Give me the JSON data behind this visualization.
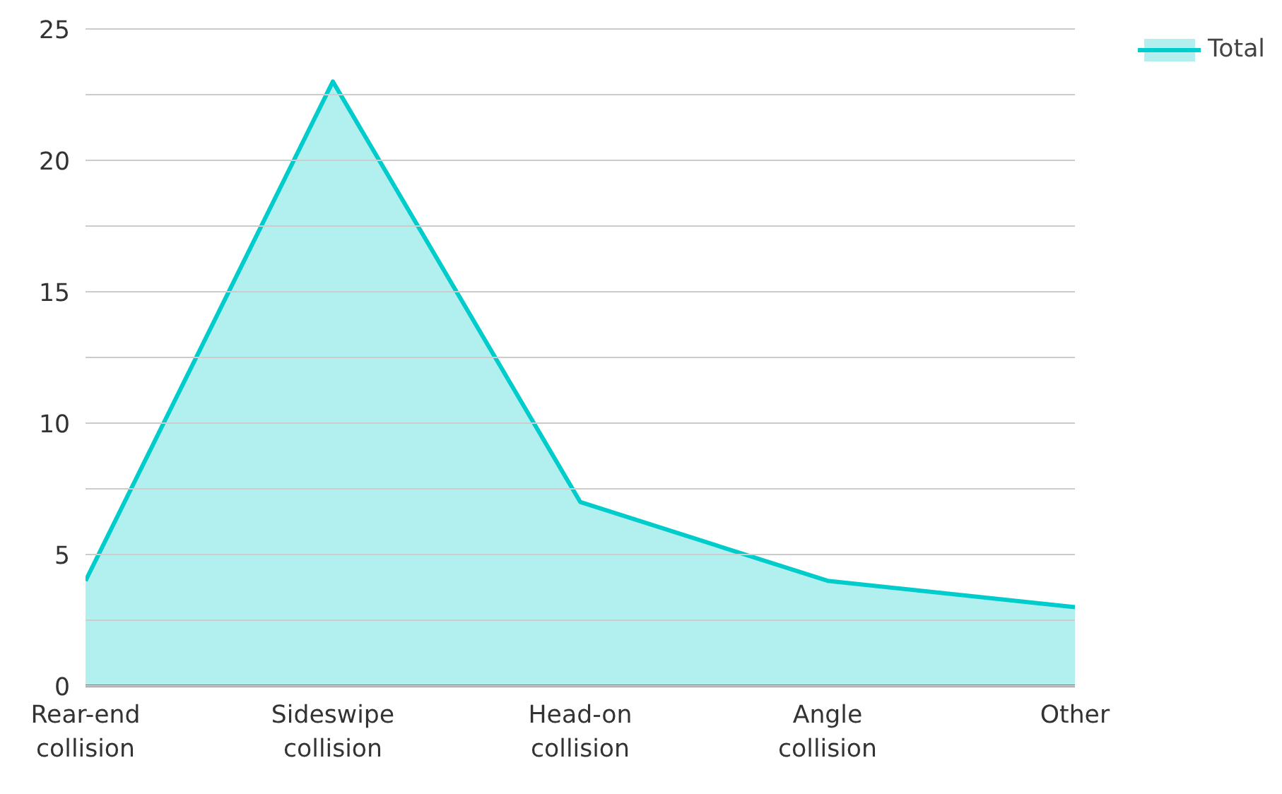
{
  "chart_data": {
    "type": "area",
    "categories": [
      "Rear-end\ncollision",
      "Sideswipe\ncollision",
      "Head-on\ncollision",
      "Angle\ncollision",
      "Other"
    ],
    "series": [
      {
        "name": "Total",
        "color": "#00cccc",
        "values": [
          4,
          23,
          7,
          4,
          3
        ]
      }
    ],
    "ylim": [
      0,
      25
    ],
    "yticks": [
      0,
      {
        "value": 2.5,
        "label": null
      },
      5,
      {
        "value": 7.5,
        "label": null
      },
      10,
      {
        "value": 12.5,
        "label": null
      },
      15,
      {
        "value": 17.5,
        "label": null
      },
      20,
      {
        "value": 22.5,
        "label": null
      },
      25
    ],
    "grid": "y",
    "legend": "top right"
  }
}
